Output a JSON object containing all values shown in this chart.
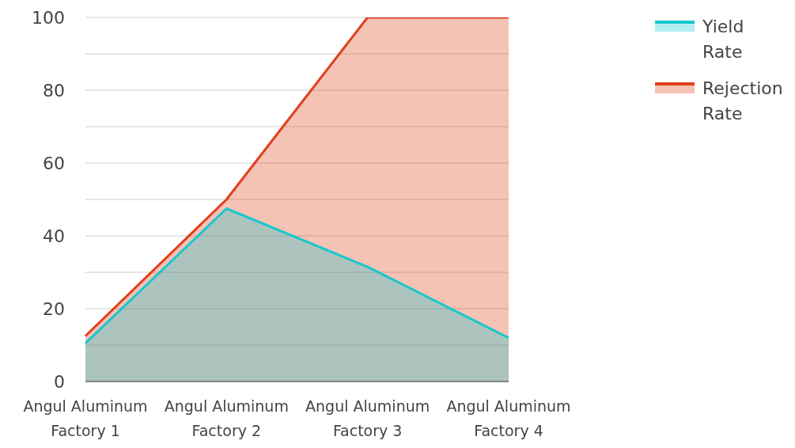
{
  "chart_data": {
    "type": "area",
    "categories": [
      "Angul Aluminum Factory 1",
      "Angul Aluminum Factory 2",
      "Angul Aluminum Factory 3",
      "Angul Aluminum Factory 4"
    ],
    "series": [
      {
        "name": "Rejection Rate",
        "color": "#e0401c",
        "values": [
          12.5,
          50,
          100,
          100
        ]
      },
      {
        "name": "Yield Rate",
        "color": "#17c8cc",
        "values": [
          10.5,
          47.5,
          31.5,
          12
        ]
      }
    ],
    "ylim": [
      0,
      100
    ],
    "yticks": [
      0,
      {
        "value": 10,
        "label": null
      },
      20,
      {
        "value": 30,
        "label": null
      },
      40,
      {
        "value": 50,
        "label": null
      },
      60,
      {
        "value": 70,
        "label": null
      },
      80,
      {
        "value": 90,
        "label": null
      },
      100
    ],
    "grid": "y",
    "legend": "top right"
  }
}
